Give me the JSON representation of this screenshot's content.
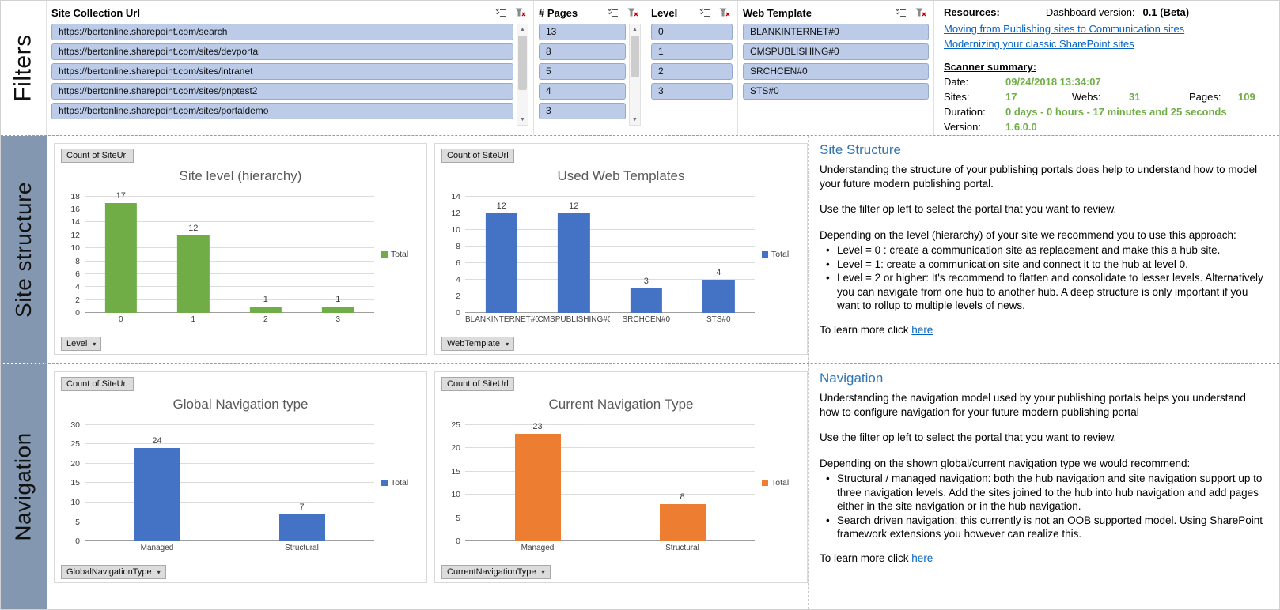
{
  "sections": {
    "filters_label": "Filters",
    "site_structure_label": "Site structure",
    "navigation_label": "Navigation"
  },
  "slicers": [
    {
      "title": "Site Collection Url",
      "items": [
        "https://bertonline.sharepoint.com/search",
        "https://bertonline.sharepoint.com/sites/devportal",
        "https://bertonline.sharepoint.com/sites/intranet",
        "https://bertonline.sharepoint.com/sites/pnptest2",
        "https://bertonline.sharepoint.com/sites/portaldemo"
      ]
    },
    {
      "title": "# Pages",
      "items": [
        "13",
        "8",
        "5",
        "4",
        "3"
      ]
    },
    {
      "title": "Level",
      "items": [
        "0",
        "1",
        "2",
        "3"
      ]
    },
    {
      "title": "Web Template",
      "items": [
        "BLANKINTERNET#0",
        "CMSPUBLISHING#0",
        "SRCHCEN#0",
        "STS#0"
      ]
    }
  ],
  "resources": {
    "heading": "Resources:",
    "dashboard_version_label": "Dashboard version:",
    "dashboard_version_value": "0.1 (Beta)",
    "links": [
      "Moving from Publishing sites to Communication sites",
      "Modernizing your classic SharePoint sites"
    ],
    "scanner": {
      "heading": "Scanner summary:",
      "date_label": "Date:",
      "date": "09/24/2018 13:34:07",
      "sites_label": "Sites:",
      "sites": "17",
      "webs_label": "Webs:",
      "webs": "31",
      "pages_label": "Pages:",
      "pages": "109",
      "duration_label": "Duration:",
      "duration": "0 days - 0 hours - 17 minutes and 25 seconds",
      "version_label": "Version:",
      "version": "1.6.0.0"
    }
  },
  "chart_data": [
    {
      "type": "bar",
      "title": "Site level (hierarchy)",
      "categories": [
        "0",
        "1",
        "2",
        "3"
      ],
      "values": [
        17,
        12,
        1,
        1
      ],
      "ylim": [
        0,
        18
      ],
      "ytick": 2,
      "color": "#70AD47",
      "legend": "Total",
      "legend_position": "right",
      "field_button": "Count of SiteUrl",
      "axis_button": "Level"
    },
    {
      "type": "bar",
      "title": "Used Web Templates",
      "categories": [
        "BLANKINTERNET#0",
        "CMSPUBLISHING#0",
        "SRCHCEN#0",
        "STS#0"
      ],
      "values": [
        12,
        12,
        3,
        4
      ],
      "ylim": [
        0,
        14
      ],
      "ytick": 2,
      "color": "#4472C4",
      "legend": "Total",
      "legend_position": "right",
      "field_button": "Count of SiteUrl",
      "axis_button": "WebTemplate"
    },
    {
      "type": "bar",
      "title": "Global Navigation type",
      "categories": [
        "Managed",
        "Structural"
      ],
      "values": [
        24,
        7
      ],
      "ylim": [
        0,
        30
      ],
      "ytick": 5,
      "color": "#4472C4",
      "legend": "Total",
      "legend_position": "right",
      "field_button": "Count of SiteUrl",
      "axis_button": "GlobalNavigationType"
    },
    {
      "type": "bar",
      "title": "Current Navigation Type",
      "categories": [
        "Managed",
        "Structural"
      ],
      "values": [
        23,
        8
      ],
      "ylim": [
        0,
        25
      ],
      "ytick": 5,
      "color": "#ED7D31",
      "legend": "Total",
      "legend_position": "right",
      "field_button": "Count of SiteUrl",
      "axis_button": "CurrentNavigationType"
    }
  ],
  "panels": {
    "site_structure": {
      "heading": "Site Structure",
      "para1": "Understanding the structure of your publishing portals does help to understand how to model your future modern publishing portal.",
      "para2": "Use the filter op left to select the portal that you want to review.",
      "para3": "Depending on the level (hierarchy) of your site we recommend you to use this approach:",
      "bullets": [
        "Level = 0 : create a communication site as replacement and make this a hub site.",
        "Level = 1: create a communication site and connect it to the hub at level 0.",
        "Level = 2 or higher: It's recommend to flatten and consolidate to lesser levels. Alternatively you can navigate from one hub to another hub. A deep structure is only important if you want to rollup to multiple levels of news."
      ],
      "footer_prefix": "To learn more click ",
      "footer_link": "here"
    },
    "navigation": {
      "heading": "Navigation",
      "para1": "Understanding the navigation model used by your publishing portals helps you understand how to configure navigation for your future modern publishing portal",
      "para2": "Use the filter op left to select the portal that you want to review.",
      "para3": "Depending on the shown global/current navigation type we would recommend:",
      "bullets": [
        "Structural / managed navigation: both the hub navigation and site navigation support up to three navigation levels. Add the sites joined to the hub into hub navigation and add pages either in the site navigation or in the hub navigation.",
        "Search driven navigation: this currently is not an OOB supported model. Using SharePoint framework extensions you however can realize this."
      ],
      "footer_prefix": "To learn more click ",
      "footer_link": "here"
    }
  },
  "colors": {
    "accent_green": "#70AD47",
    "accent_blue": "#4472C4",
    "accent_orange": "#ED7D31",
    "link_blue": "#0563C1",
    "heading_blue": "#2E75B6",
    "section_strip": "#8497B0",
    "slicer_item_fill": "#BCCCE8"
  }
}
